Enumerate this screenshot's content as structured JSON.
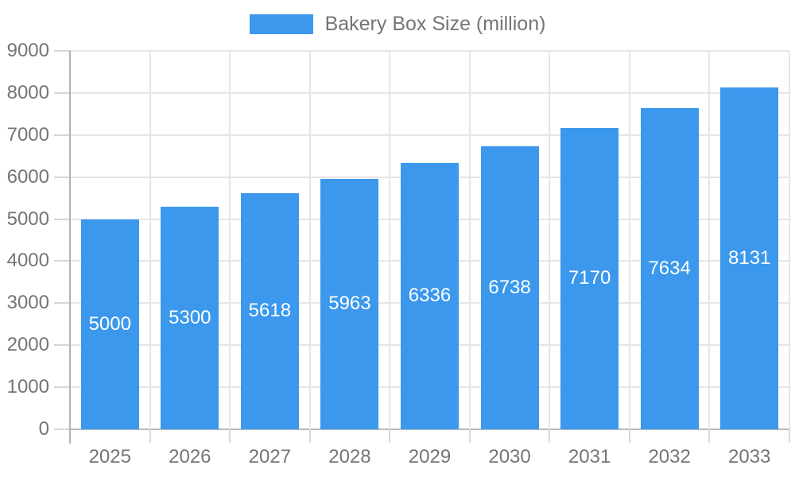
{
  "legend": {
    "label": "Bakery Box Size (million)",
    "swatch_color": "#3b98ec"
  },
  "chart_data": {
    "type": "bar",
    "title": "Bakery Box Size (million)",
    "series_name": "Bakery Box Size (million)",
    "categories": [
      "2025",
      "2026",
      "2027",
      "2028",
      "2029",
      "2030",
      "2031",
      "2032",
      "2033"
    ],
    "values": [
      5000,
      5300,
      5618,
      5963,
      6336,
      6738,
      7170,
      7634,
      8131
    ],
    "value_labels": [
      "5000",
      "5300",
      "5618",
      "5963",
      "6336",
      "6738",
      "7170",
      "7634",
      "8131"
    ],
    "xlabel": "",
    "ylabel": "",
    "ylim": [
      0,
      9000
    ],
    "yticks": [
      0,
      1000,
      2000,
      3000,
      4000,
      5000,
      6000,
      7000,
      8000,
      9000
    ],
    "ytick_labels": [
      "0",
      "1000",
      "2000",
      "3000",
      "4000",
      "5000",
      "6000",
      "7000",
      "8000",
      "9000"
    ],
    "grid": true,
    "legend_position": "top",
    "colors": {
      "bar": "#3b98ec",
      "value_label": "#ffffff",
      "axis_text": "#757575",
      "gridline": "#e6e6e6",
      "axis_line": "#b3b3b3",
      "tick": "#d9d9d9"
    }
  }
}
